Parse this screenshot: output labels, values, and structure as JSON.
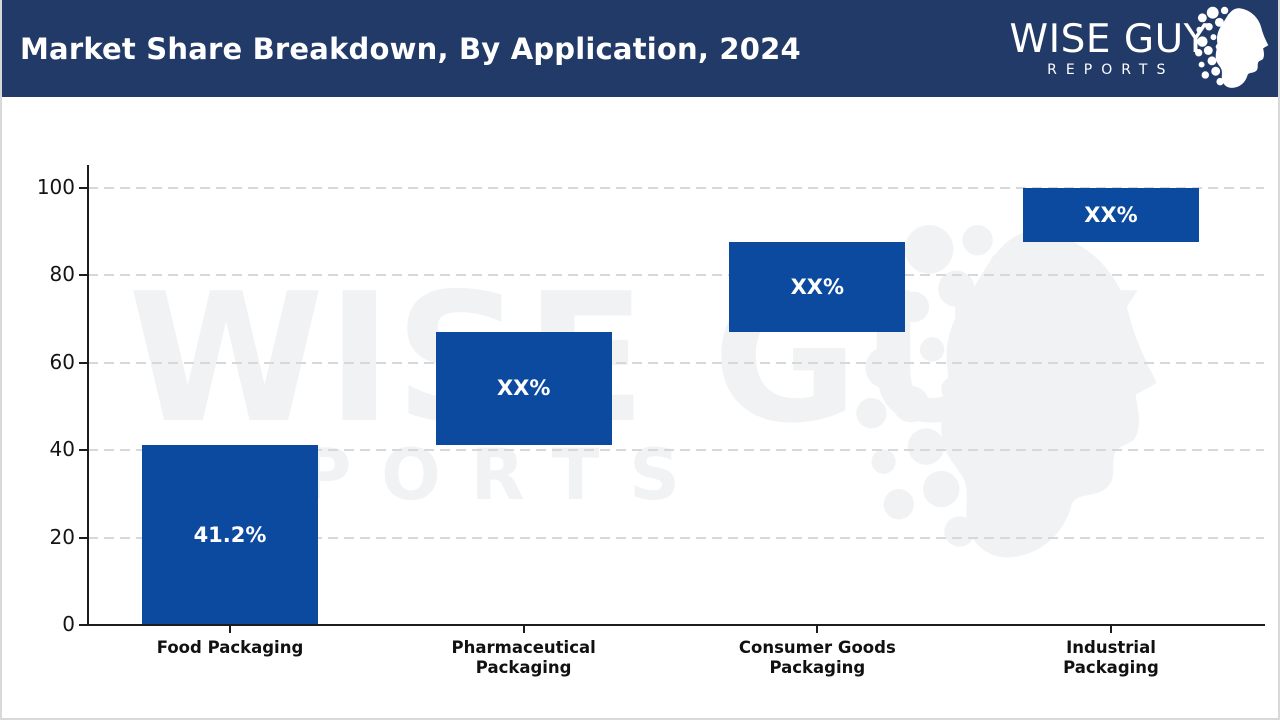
{
  "header": {
    "title": "Market Share Breakdown, By Application, 2024",
    "logo": {
      "line1": "WISE GUY",
      "line2": "REPORTS"
    }
  },
  "watermark": {
    "line1": "WISE GUY",
    "line2": "PORTS"
  },
  "colors": {
    "header_bg": "#223a67",
    "bar_blue": "#0b4a9e",
    "bar_label_text": "#ffffff",
    "grid_line": "#d8d8d8",
    "axis": "#1c1c1c",
    "watermark": "#f1f2f4",
    "frame_border": "#d9d9d9",
    "title_text": "#ffffff"
  },
  "chart_data": {
    "type": "bar",
    "subtype": "waterfall (stacked progression, floating bars)",
    "title": "Market Share Breakdown, By Application, 2024",
    "categories": [
      "Food Packaging",
      "Pharmaceutical Packaging",
      "Consumer Goods Packaging",
      "Industrial Packaging"
    ],
    "category_label_lines": [
      [
        "Food Packaging"
      ],
      [
        "Pharmaceutical",
        "Packaging"
      ],
      [
        "Consumer Goods",
        "Packaging"
      ],
      [
        "Industrial",
        "Packaging"
      ]
    ],
    "series": [
      {
        "name": "Market share (%)",
        "bar_starts": [
          0,
          41.2,
          67,
          87.6
        ],
        "bar_ends": [
          41.2,
          67,
          87.6,
          100
        ],
        "bar_labels": [
          "41.2%",
          "XX%",
          "XX%",
          "XX%"
        ]
      }
    ],
    "xlabel": "",
    "ylabel": "",
    "ylim": [
      0,
      105
    ],
    "yticks": [
      0,
      20,
      40,
      60,
      80,
      100
    ],
    "grid": "horizontal dashed",
    "legend": "none"
  }
}
